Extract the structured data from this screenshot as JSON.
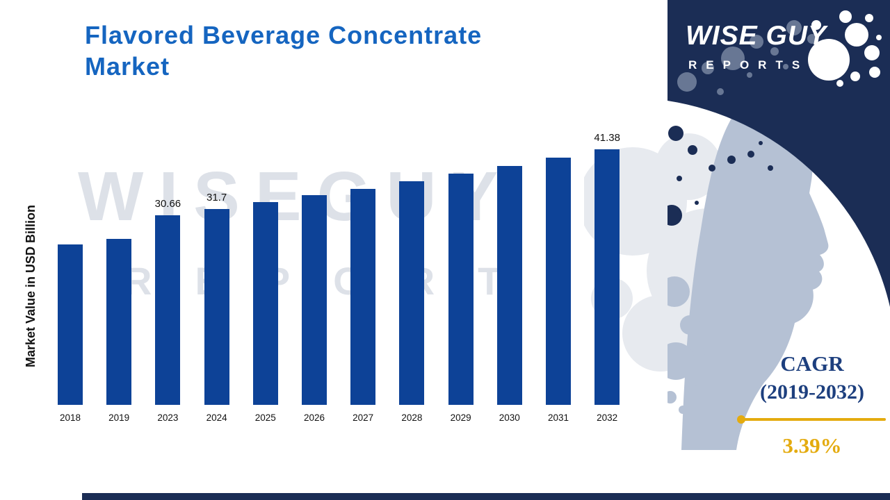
{
  "header": {
    "title_lines": [
      "Flavored Beverage Concentrate",
      "Market"
    ]
  },
  "brand": {
    "name": "WISE GUY",
    "sub": "REPORTS",
    "watermark_line1": "WISEGUY",
    "watermark_line2": "REPORTS"
  },
  "chart_data": {
    "type": "bar",
    "title": "Flavored Beverage Concentrate Market",
    "ylabel": "Market Value in USD Billion",
    "xlabel": "",
    "categories": [
      "2018",
      "2019",
      "2023",
      "2024",
      "2025",
      "2026",
      "2027",
      "2028",
      "2029",
      "2030",
      "2031",
      "2032"
    ],
    "values": [
      25.9,
      26.8,
      30.66,
      31.7,
      32.8,
      33.9,
      35.0,
      36.2,
      37.4,
      38.7,
      40.0,
      41.38
    ],
    "data_labels": [
      "",
      "",
      "30.66",
      "31.7",
      "",
      "",
      "",
      "",
      "",
      "",
      "",
      "41.38"
    ],
    "ylim": [
      0,
      45
    ],
    "grid": false,
    "legend": false,
    "bar_color": "#0d4297"
  },
  "cagr": {
    "line1": "CAGR",
    "line2": "(2019-2032)",
    "value": "3.39%"
  },
  "colors": {
    "title_blue": "#1565c0",
    "bar": "#0d4297",
    "panel_navy": "#1b2d55",
    "gold": "#e4ab0f",
    "face_light_blue": "#b5c1d4",
    "watermark_gray": "#dde1e8"
  }
}
